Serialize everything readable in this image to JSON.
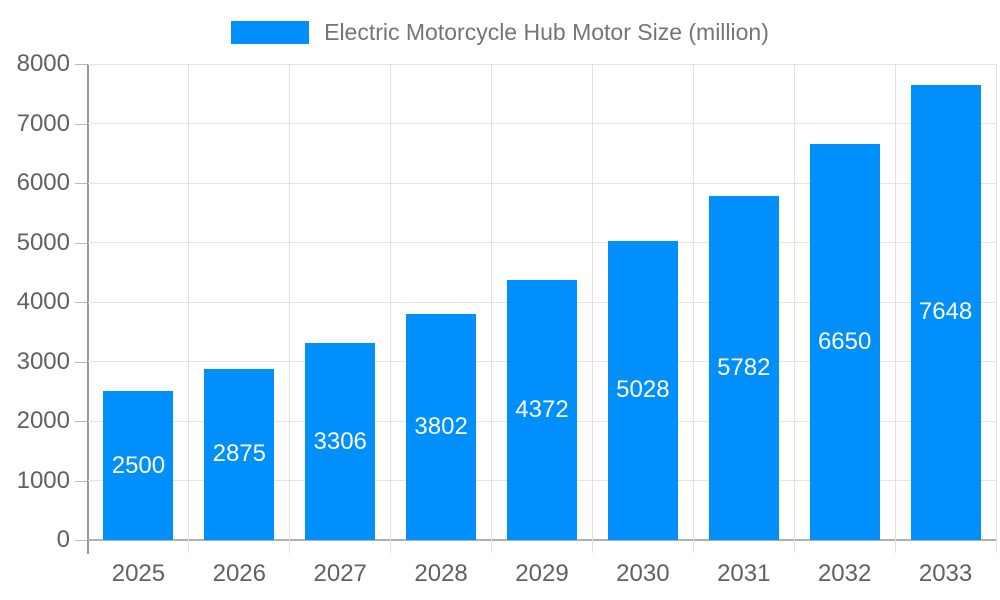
{
  "legend": {
    "label": "Electric Motorcycle Hub Motor Size (million)"
  },
  "chart_data": {
    "type": "bar",
    "title": "Electric Motorcycle Hub Motor Size (million)",
    "categories": [
      "2025",
      "2026",
      "2027",
      "2028",
      "2029",
      "2030",
      "2031",
      "2032",
      "2033"
    ],
    "series": [
      {
        "name": "Electric Motorcycle Hub Motor Size (million)",
        "values": [
          2500,
          2875,
          3306,
          3802,
          4372,
          5028,
          5782,
          6650,
          7648
        ]
      }
    ],
    "data_labels": [
      "2500",
      "2875",
      "3306",
      "3802",
      "4372",
      "5028",
      "5782",
      "6650",
      "7648"
    ],
    "xlabel": "",
    "ylabel": "",
    "ylim": [
      0,
      8000
    ],
    "yticks": [
      0,
      1000,
      2000,
      3000,
      4000,
      5000,
      6000,
      7000,
      8000
    ],
    "grid": true,
    "legend_position": "top",
    "colors": {
      "bar": "#008ffb",
      "data_label": "#ffffff",
      "grid_line": "#e4e4e4",
      "axis_label": "#616161",
      "legend_text": "#757575",
      "x_axis_line": "#b0b0b0",
      "y_axis_line": "#989898"
    }
  }
}
